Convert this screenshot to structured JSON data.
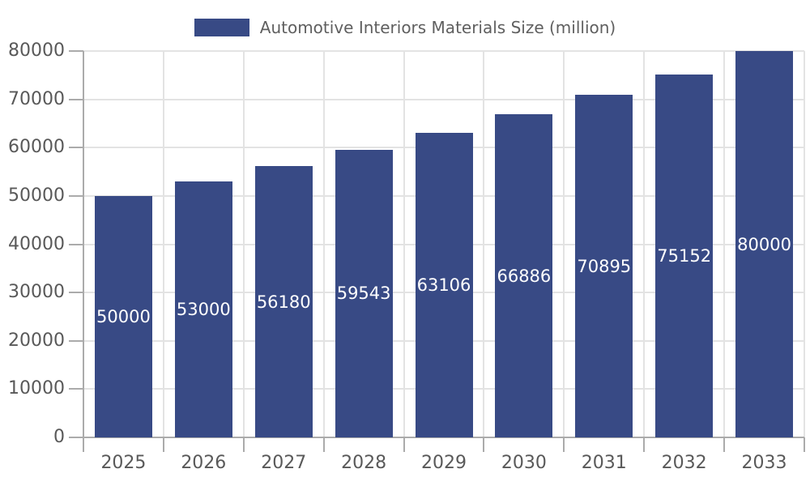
{
  "chart_data": {
    "type": "bar",
    "title": "Automotive Interiors Materials Size (million)",
    "categories": [
      "2025",
      "2026",
      "2027",
      "2028",
      "2029",
      "2030",
      "2031",
      "2032",
      "2033"
    ],
    "values": [
      50000,
      53000,
      56180,
      59543,
      63106,
      66886,
      70895,
      75152,
      80000
    ],
    "xlabel": "",
    "ylabel": "",
    "ylim": [
      0,
      80000
    ],
    "yticks": [
      0,
      10000,
      20000,
      30000,
      40000,
      50000,
      60000,
      70000,
      80000
    ],
    "grid": true,
    "legend_position": "top-center",
    "value_labels": "inside-center",
    "colors": {
      "bar": "#384A85",
      "grid": "#E3E3E3",
      "axis": "#ABABAB",
      "tick_label": "#595959",
      "title": "#5F5F5F",
      "value_label": "#FFFFFF",
      "background": "#FFFFFF"
    }
  }
}
